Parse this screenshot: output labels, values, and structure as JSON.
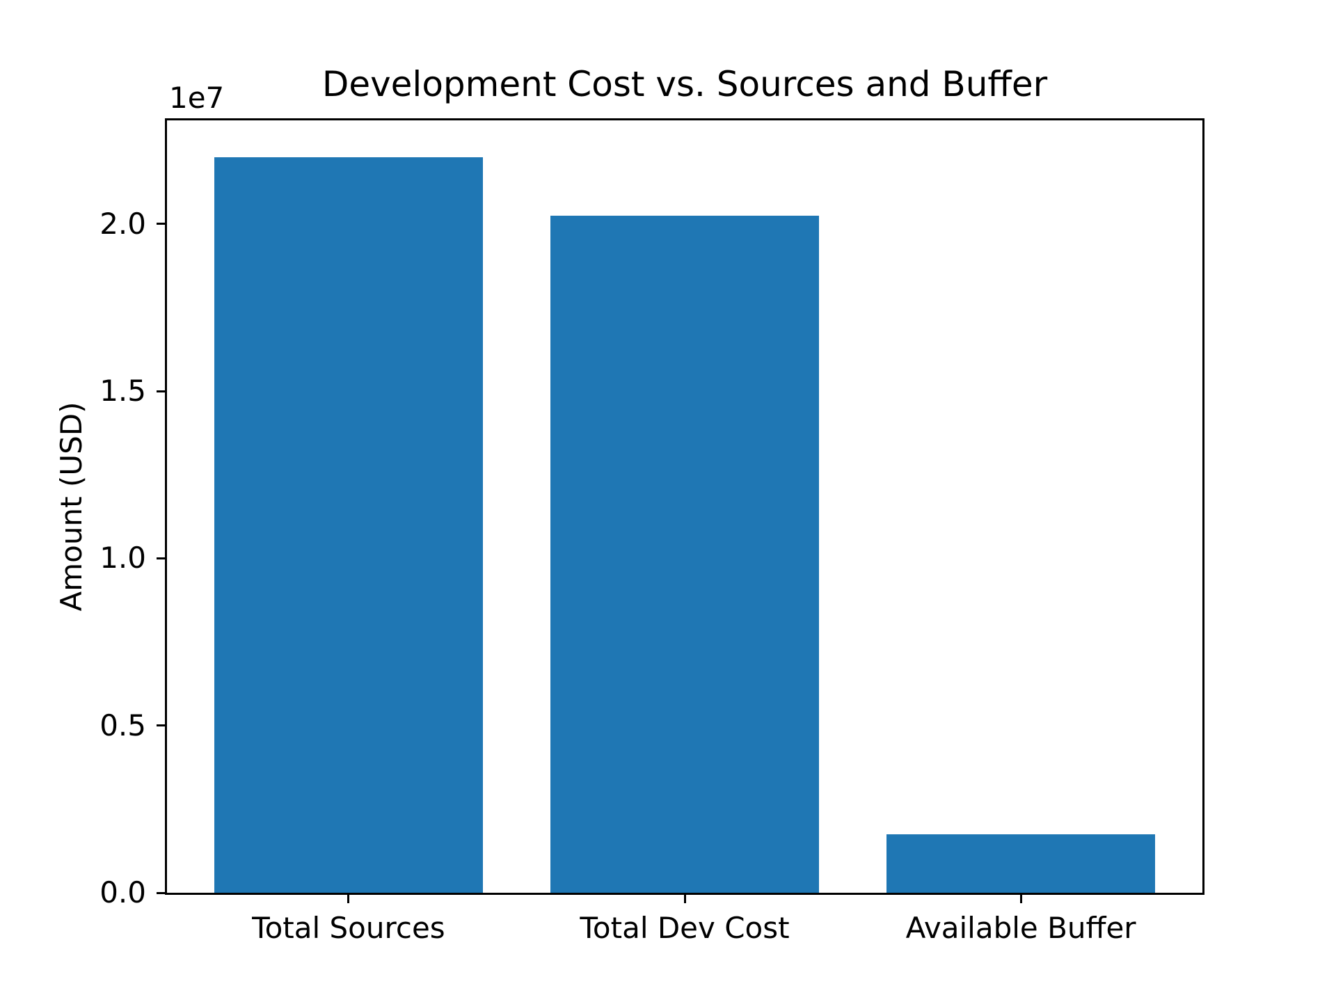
{
  "chart_data": {
    "type": "bar",
    "title": "Development Cost vs. Sources and Buffer",
    "xlabel": "",
    "ylabel": "Amount (USD)",
    "y_offset_text": "1e7",
    "categories": [
      "Total Sources",
      "Total Dev Cost",
      "Available Buffer"
    ],
    "values": [
      22000000,
      20250000,
      1750000
    ],
    "bar_color": "#1f77b4",
    "ylim": [
      0,
      23100000
    ],
    "xlim": [
      -0.54,
      2.54
    ],
    "bar_width": 0.8,
    "yticks": [
      0,
      5000000,
      10000000,
      15000000,
      20000000
    ],
    "ytick_labels": [
      "0.0",
      "0.5",
      "1.0",
      "1.5",
      "2.0"
    ],
    "grid": false,
    "legend_position": "none"
  }
}
